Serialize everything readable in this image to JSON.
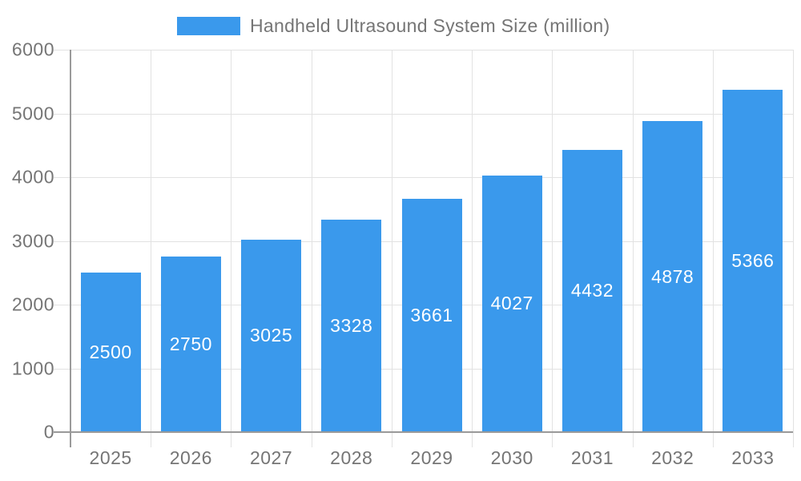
{
  "chart_data": {
    "type": "bar",
    "title": "Handheld Ultrasound System Size (million)",
    "legend_position": "top",
    "categories": [
      "2025",
      "2026",
      "2027",
      "2028",
      "2029",
      "2030",
      "2031",
      "2032",
      "2033"
    ],
    "series": [
      {
        "name": "Handheld Ultrasound System Size (million)",
        "values": [
          2500,
          2750,
          3025,
          3328,
          3661,
          4027,
          4432,
          4878,
          5366
        ]
      }
    ],
    "xlabel": "",
    "ylabel": "",
    "ylim": [
      0,
      6000
    ],
    "yticks": [
      0,
      1000,
      2000,
      3000,
      4000,
      5000,
      6000
    ],
    "grid": true,
    "bar_labels_shown": true,
    "colors": {
      "bar": "#3A99EC",
      "bar_label_text": "#FFFFFF",
      "axis_text": "#757575",
      "gridline": "#E2E2E2",
      "axis_line": "#9A9A9A",
      "background": "#FFFFFF"
    }
  }
}
